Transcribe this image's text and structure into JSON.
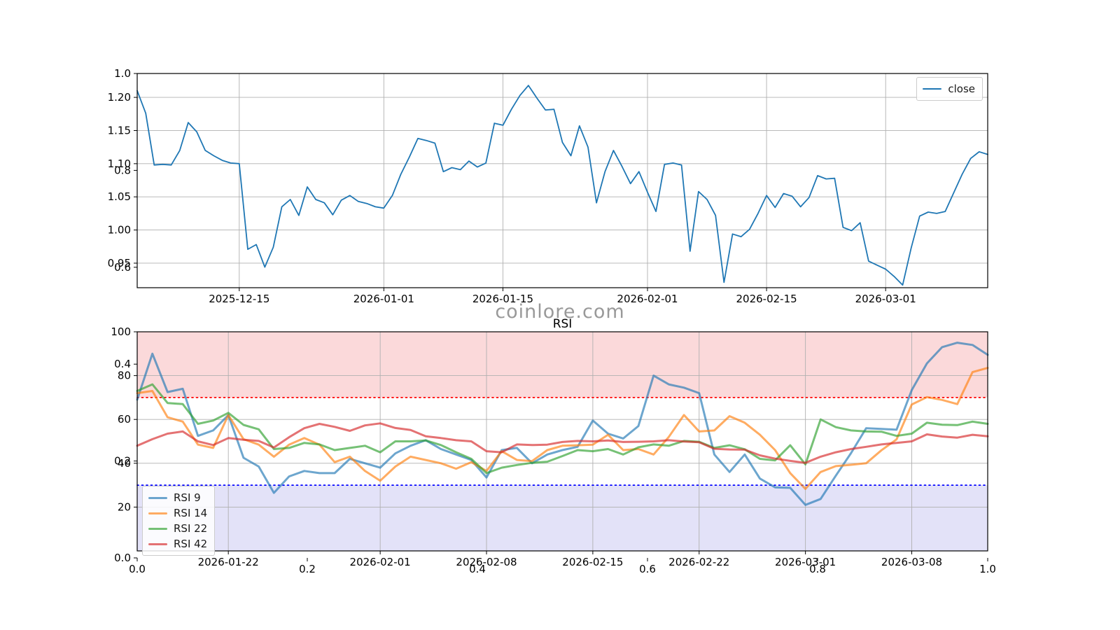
{
  "watermark": "coinlore.com",
  "colors": {
    "close": "#1f77b4",
    "rsi9": "#1f77b4",
    "rsi14": "#ff7f0e",
    "rsi22": "#2ca02c",
    "rsi42": "#d62728",
    "grid": "#b0b0b0",
    "spine": "#000000",
    "overbought_band": "#fbd9da",
    "oversold_band": "#e3e2f8",
    "overbought_line": "#ff0000",
    "oversold_line": "#0000ff",
    "watermark_color": "#999999"
  },
  "outer_axis": {
    "x_labels": [
      "0.0",
      "0.2",
      "0.4",
      "0.6",
      "0.8",
      "1.0"
    ],
    "y_labels": [
      "0.0",
      "0.2",
      "0.4",
      "0.6",
      "0.8",
      "1.0"
    ]
  },
  "chart_data": [
    {
      "type": "line",
      "title": "",
      "legend_position": "upper right",
      "grid": true,
      "ylim": [
        0.913,
        1.236
      ],
      "y_tick_values": [
        0.95,
        1.0,
        1.05,
        1.1,
        1.15,
        1.2
      ],
      "y_tick_labels": [
        "0.95",
        "1.00",
        "1.05",
        "1.10",
        "1.15",
        "1.20"
      ],
      "x_tick_labels": [
        "2025-12-15",
        "2026-01-01",
        "2026-01-15",
        "2026-02-01",
        "2026-02-15",
        "2026-03-01"
      ],
      "x_tick_indices": [
        12,
        29,
        43,
        60,
        74,
        88
      ],
      "series": [
        {
          "name": "close",
          "color": "#1f77b4",
          "values": [
            1.21,
            1.176,
            1.098,
            1.099,
            1.098,
            1.12,
            1.162,
            1.148,
            1.12,
            1.112,
            1.105,
            1.101,
            1.1,
            0.971,
            0.978,
            0.944,
            0.974,
            1.035,
            1.046,
            1.022,
            1.065,
            1.046,
            1.041,
            1.023,
            1.045,
            1.052,
            1.043,
            1.04,
            1.035,
            1.033,
            1.052,
            1.084,
            1.11,
            1.138,
            1.135,
            1.131,
            1.088,
            1.094,
            1.091,
            1.104,
            1.095,
            1.101,
            1.161,
            1.158,
            1.182,
            1.203,
            1.218,
            1.199,
            1.181,
            1.182,
            1.132,
            1.112,
            1.157,
            1.125,
            1.041,
            1.088,
            1.12,
            1.096,
            1.07,
            1.088,
            1.057,
            1.028,
            1.099,
            1.101,
            1.098,
            0.968,
            1.058,
            1.046,
            1.022,
            0.921,
            0.994,
            0.99,
            1.001,
            1.025,
            1.052,
            1.034,
            1.055,
            1.051,
            1.035,
            1.049,
            1.082,
            1.077,
            1.078,
            1.004,
            0.999,
            1.011,
            0.953,
            0.947,
            0.941,
            0.93,
            0.917,
            0.973,
            1.021,
            1.027,
            1.025,
            1.028,
            1.056,
            1.084,
            1.108,
            1.118,
            1.114
          ]
        }
      ]
    },
    {
      "type": "line",
      "title": "RSI",
      "legend_position": "lower left",
      "grid": true,
      "ylim": [
        0,
        100
      ],
      "y_tick_values": [
        20,
        40,
        60,
        80,
        100
      ],
      "y_tick_labels": [
        "20",
        "40",
        "60",
        "80",
        "100"
      ],
      "x_tick_labels": [
        "2026-01-22",
        "2026-02-01",
        "2026-02-08",
        "2026-02-15",
        "2026-02-22",
        "2026-03-01",
        "2026-03-08"
      ],
      "x_tick_indices": [
        6,
        16,
        23,
        30,
        37,
        44,
        51
      ],
      "bands": [
        {
          "name": "overbought-band",
          "from": 70,
          "to": 100,
          "color": "#fbd9da"
        },
        {
          "name": "oversold-band",
          "from": 0,
          "to": 30,
          "color": "#e3e2f8"
        }
      ],
      "ref_lines": [
        {
          "name": "overbought-line",
          "value": 70,
          "color": "#ff0000"
        },
        {
          "name": "oversold-line",
          "value": 30,
          "color": "#0000ff"
        }
      ],
      "series": [
        {
          "name": "RSI 9",
          "color": "#1f77b4",
          "values": [
            69,
            90,
            72.5,
            74,
            52.5,
            55,
            62,
            42.5,
            38.5,
            26.5,
            34,
            36.5,
            35.5,
            35.5,
            42,
            40,
            38,
            44.5,
            48,
            50.5,
            46.5,
            44,
            41.5,
            33.5,
            46,
            47,
            40,
            44,
            46,
            47.5,
            59.5,
            53.5,
            51.3,
            57,
            80,
            76,
            74.5,
            72,
            44,
            36,
            44,
            33,
            29,
            28.8,
            21,
            23.7,
            34.3,
            44.6,
            56,
            55.7,
            55.3,
            73.4,
            85.6,
            93,
            95,
            94,
            89.5
          ]
        },
        {
          "name": "RSI 14",
          "color": "#ff7f0e",
          "values": [
            72,
            73,
            61,
            59,
            48.5,
            47,
            62,
            51,
            48.5,
            43,
            48.5,
            51.5,
            48.5,
            40.5,
            43,
            36.5,
            32,
            38.5,
            43,
            41.5,
            40,
            37.5,
            40.5,
            36.5,
            45.5,
            41.5,
            41,
            46,
            48,
            48.2,
            48.5,
            53,
            46,
            46.5,
            44,
            52,
            62,
            54.5,
            55,
            61.5,
            58.5,
            53,
            46,
            35.5,
            28.3,
            36,
            38.7,
            39.3,
            40,
            45.9,
            50.9,
            66.8,
            70.2,
            68.9,
            67,
            81.6,
            83.5
          ]
        },
        {
          "name": "RSI 22",
          "color": "#2ca02c",
          "values": [
            73,
            76,
            67.5,
            67,
            58,
            59.5,
            63,
            57.5,
            55.5,
            46.5,
            47,
            49.3,
            48.6,
            46,
            47,
            48,
            45,
            50,
            50,
            50.4,
            48.3,
            45,
            42,
            35.5,
            38,
            39.2,
            40.2,
            40.7,
            43.3,
            46,
            45.5,
            46.5,
            44,
            47.3,
            48.6,
            48,
            50.2,
            49.8,
            47,
            48.2,
            46.4,
            42,
            41.3,
            48.2,
            39.5,
            60,
            56.5,
            55,
            54.5,
            54.4,
            52.5,
            53.5,
            58.5,
            57.6,
            57.4,
            59,
            58
          ]
        },
        {
          "name": "RSI 42",
          "color": "#d62728",
          "values": [
            48,
            51,
            53.5,
            54.5,
            50,
            48.3,
            51.5,
            50.7,
            50.2,
            47.2,
            51.9,
            56,
            58,
            56.6,
            54.8,
            57.3,
            58.2,
            56.1,
            55.2,
            52.3,
            51.5,
            50.5,
            50,
            45.5,
            45,
            48.6,
            48.3,
            48.5,
            49.7,
            50.2,
            50,
            50.4,
            49.7,
            49.8,
            50,
            50.5,
            49.9,
            49.6,
            46.6,
            46.3,
            46.2,
            43.6,
            42.1,
            41.1,
            40.2,
            43,
            45,
            46.5,
            47.5,
            48.6,
            49.3,
            50,
            53.2,
            52.2,
            51.7,
            53,
            52.3
          ]
        }
      ]
    }
  ]
}
